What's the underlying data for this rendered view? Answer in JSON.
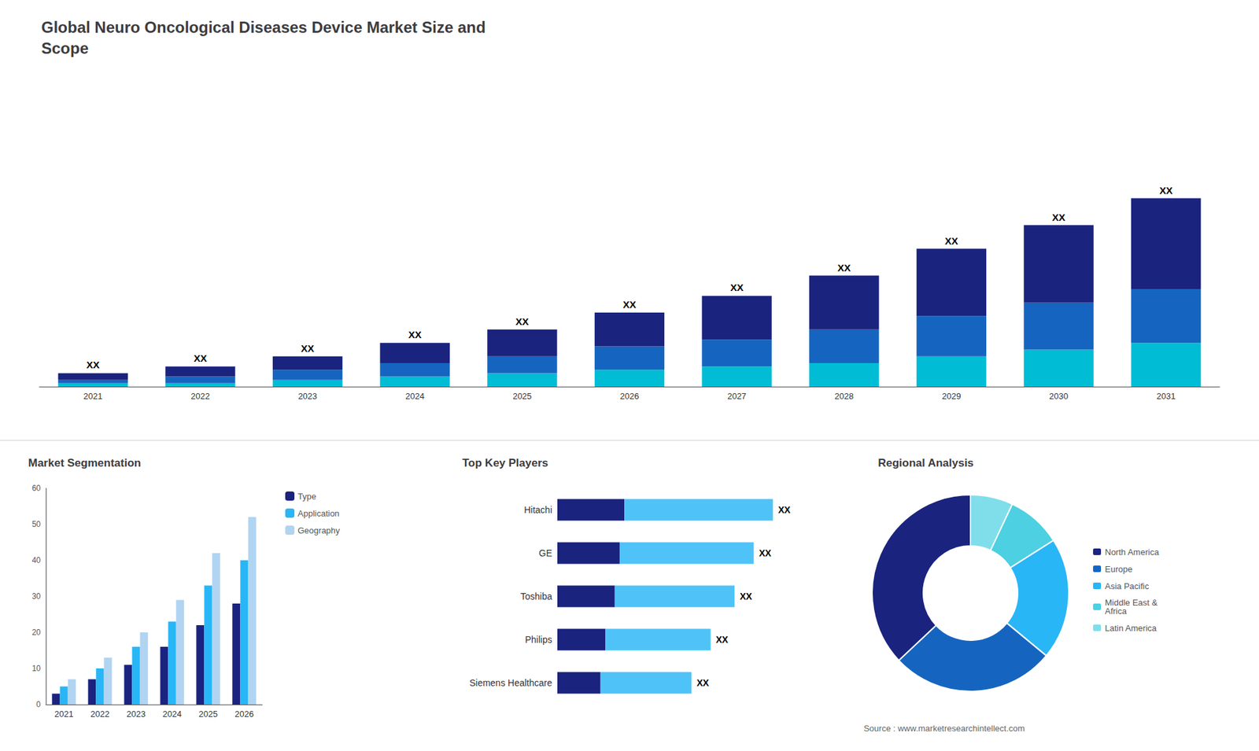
{
  "chart_data": [
    {
      "type": "bar",
      "title": "Global Neuro Oncological Diseases Device Market Size and\nScope",
      "categories": [
        2021,
        2022,
        2023,
        2024,
        2025,
        2026,
        2027,
        2028,
        2029,
        2030,
        2031
      ],
      "stacked": true,
      "series": [
        {
          "color": "#00bcd4",
          "values": [
            1,
            1,
            2,
            3,
            4,
            5,
            6,
            7,
            9,
            11,
            13
          ]
        },
        {
          "color": "#1565c0",
          "values": [
            1,
            2,
            3,
            4,
            5,
            7,
            8,
            10,
            12,
            14,
            16
          ]
        },
        {
          "color": "#1a237e",
          "values": [
            2,
            3,
            4,
            6,
            8,
            10,
            13,
            16,
            20,
            23,
            27
          ]
        }
      ],
      "ylim": [
        0,
        89.6
      ],
      "tick_labels": "x",
      "grid": false,
      "annotations": [
        {
          "category": 2021,
          "text": "XX"
        },
        {
          "category": 2022,
          "text": "XX"
        },
        {
          "category": 2023,
          "text": "XX"
        },
        {
          "category": 2024,
          "text": "XX"
        },
        {
          "category": 2025,
          "text": "XX"
        },
        {
          "category": 2026,
          "text": "XX"
        },
        {
          "category": 2027,
          "text": "XX"
        },
        {
          "category": 2028,
          "text": "XX"
        },
        {
          "category": 2029,
          "text": "XX"
        },
        {
          "category": 2030,
          "text": "XX"
        },
        {
          "category": 2031,
          "text": "XX"
        }
      ]
    },
    {
      "type": "bar",
      "title": "Market Segmentation",
      "categories": [
        2021,
        2022,
        2023,
        2024,
        2025,
        2026
      ],
      "series": [
        {
          "name": "Type",
          "color": "#1a237e",
          "values": [
            3,
            7,
            11,
            16,
            22,
            28
          ]
        },
        {
          "name": "Application",
          "color": "#29b6f6",
          "values": [
            5,
            10,
            16,
            23,
            33,
            40
          ]
        },
        {
          "name": "Geography",
          "color": "#b0d4f1",
          "values": [
            7,
            13,
            20,
            29,
            42,
            52
          ]
        }
      ],
      "ylim": [
        0,
        60
      ],
      "yticks": [
        0,
        10,
        20,
        30,
        40,
        50,
        60
      ],
      "grid": false,
      "legend": "right"
    },
    {
      "type": "bar",
      "title": "Top Key Players",
      "orientation": "horizontal",
      "stacked": true,
      "categories": [
        "Hitachi",
        "GE",
        "Toshiba",
        "Philips",
        "Siemens Healthcare"
      ],
      "series": [
        {
          "color": "#1a237e",
          "values": [
            28,
            26,
            24,
            20,
            18
          ]
        },
        {
          "color": "#4fc3f7",
          "values": [
            62,
            56,
            50,
            44,
            38
          ]
        }
      ],
      "xlim": [
        0,
        115
      ],
      "tick_labels": "y",
      "grid": false,
      "annotations": [
        {
          "category": "Hitachi",
          "text": "XX"
        },
        {
          "category": "GE",
          "text": "XX"
        },
        {
          "category": "Toshiba",
          "text": "XX"
        },
        {
          "category": "Philips",
          "text": "XX"
        },
        {
          "category": "Siemens Healthcare",
          "text": "XX"
        }
      ]
    },
    {
      "type": "pie",
      "title": "Regional Analysis",
      "categories": [
        "Latin America",
        "Middle East &\nAfrica",
        "Asia Pacific",
        "Europe",
        "North America"
      ],
      "values": [
        7,
        9,
        20,
        27,
        37
      ],
      "colors": [
        "#80deea",
        "#4dd0e1",
        "#29b6f6",
        "#1565c0",
        "#1a237e"
      ],
      "legend": "right",
      "annotations": [
        "Source : www.marketresearchintellect.com"
      ]
    }
  ]
}
